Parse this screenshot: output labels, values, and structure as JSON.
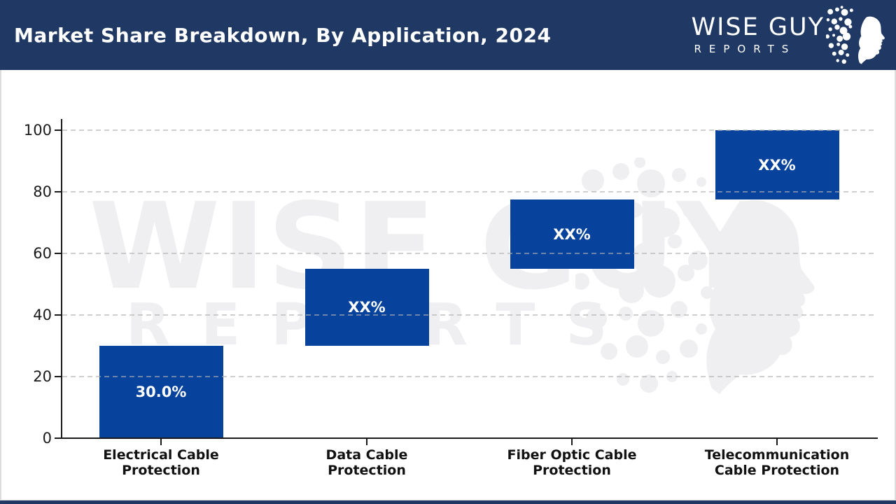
{
  "header": {
    "title": "Market Share Breakdown, By Application, 2024",
    "logo": {
      "line1": "WISE GUY",
      "line2": "REPORTS"
    }
  },
  "watermark": {
    "line1": "WISE GUY",
    "line2": "REPORTS"
  },
  "chart_data": {
    "type": "bar",
    "subtype": "waterfall",
    "title": "Market Share Breakdown, By Application, 2024",
    "categories": [
      "Electrical Cable Protection",
      "Data Cable Protection",
      "Fiber Optic Cable Protection",
      "Telecommunication Cable Protection"
    ],
    "category_lines": [
      [
        "Electrical Cable",
        "Protection"
      ],
      [
        "Data Cable",
        "Protection"
      ],
      [
        "Fiber Optic Cable",
        "Protection"
      ],
      [
        "Telecommunication",
        "Cable Protection"
      ]
    ],
    "series": [
      {
        "name": "Market Share (%)",
        "segments": [
          {
            "start": 0,
            "end": 30,
            "label": "30.0%"
          },
          {
            "start": 30,
            "end": 55,
            "label": "XX%"
          },
          {
            "start": 55,
            "end": 77.5,
            "label": "XX%"
          },
          {
            "start": 77.5,
            "end": 100,
            "label": "XX%"
          }
        ]
      }
    ],
    "ylim": [
      0,
      100
    ],
    "yticks": [
      0,
      20,
      40,
      60,
      80,
      100
    ],
    "xlabel": "",
    "ylabel": "",
    "grid": "horizontal-dashed",
    "legend": "none",
    "colors": {
      "bar": "#07439c",
      "bar_label": "#ffffff",
      "header_bg": "#1f3864",
      "footer_bg": "#1f3864",
      "watermark": "#efeff1",
      "grid": "#d7d7d7",
      "axis": "#1a1a1a"
    }
  }
}
